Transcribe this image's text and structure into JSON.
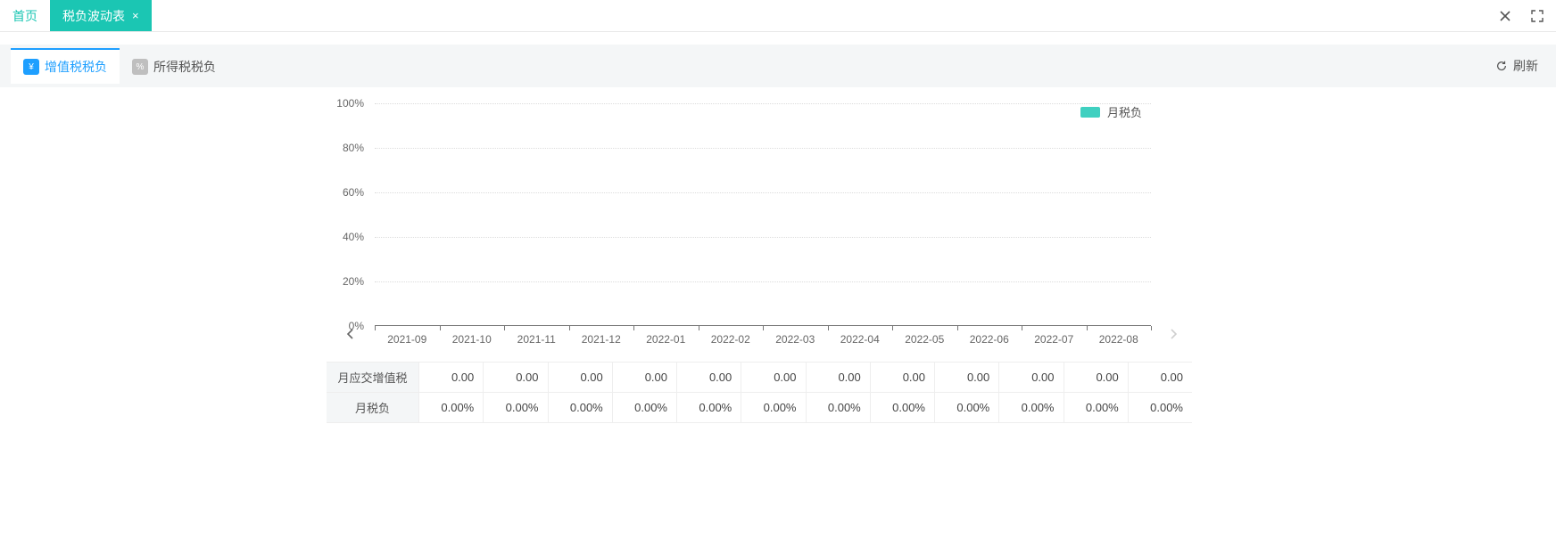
{
  "top_tabs": {
    "home_label": "首页",
    "active_label": "税负波动表"
  },
  "sub_tabs": {
    "vat_label": "增值税税负",
    "income_label": "所得税税负"
  },
  "actions": {
    "refresh_label": "刷新"
  },
  "chart": {
    "type": "line",
    "legend_label": "月税负",
    "legend_color": "#3fd0c0",
    "grid_color": "#dcdcdc",
    "axis_color": "#777777",
    "y_ticks": [
      "100%",
      "80%",
      "60%",
      "40%",
      "20%",
      "0%"
    ],
    "ylim": [
      0,
      100
    ],
    "x_labels": [
      "2021-09",
      "2021-10",
      "2021-11",
      "2021-12",
      "2022-01",
      "2022-02",
      "2022-03",
      "2022-04",
      "2022-05",
      "2022-06",
      "2022-07",
      "2022-08"
    ],
    "series_values": [
      0,
      0,
      0,
      0,
      0,
      0,
      0,
      0,
      0,
      0,
      0,
      0
    ]
  },
  "table": {
    "row1_label": "月应交增值税",
    "row1_values": [
      "0.00",
      "0.00",
      "0.00",
      "0.00",
      "0.00",
      "0.00",
      "0.00",
      "0.00",
      "0.00",
      "0.00",
      "0.00",
      "0.00"
    ],
    "row2_label": "月税负",
    "row2_values": [
      "0.00%",
      "0.00%",
      "0.00%",
      "0.00%",
      "0.00%",
      "0.00%",
      "0.00%",
      "0.00%",
      "0.00%",
      "0.00%",
      "0.00%",
      "0.00%"
    ]
  },
  "colors": {
    "brand_green": "#1bc6b3",
    "active_blue": "#1e9fff",
    "bg_grey": "#f4f6f7"
  }
}
